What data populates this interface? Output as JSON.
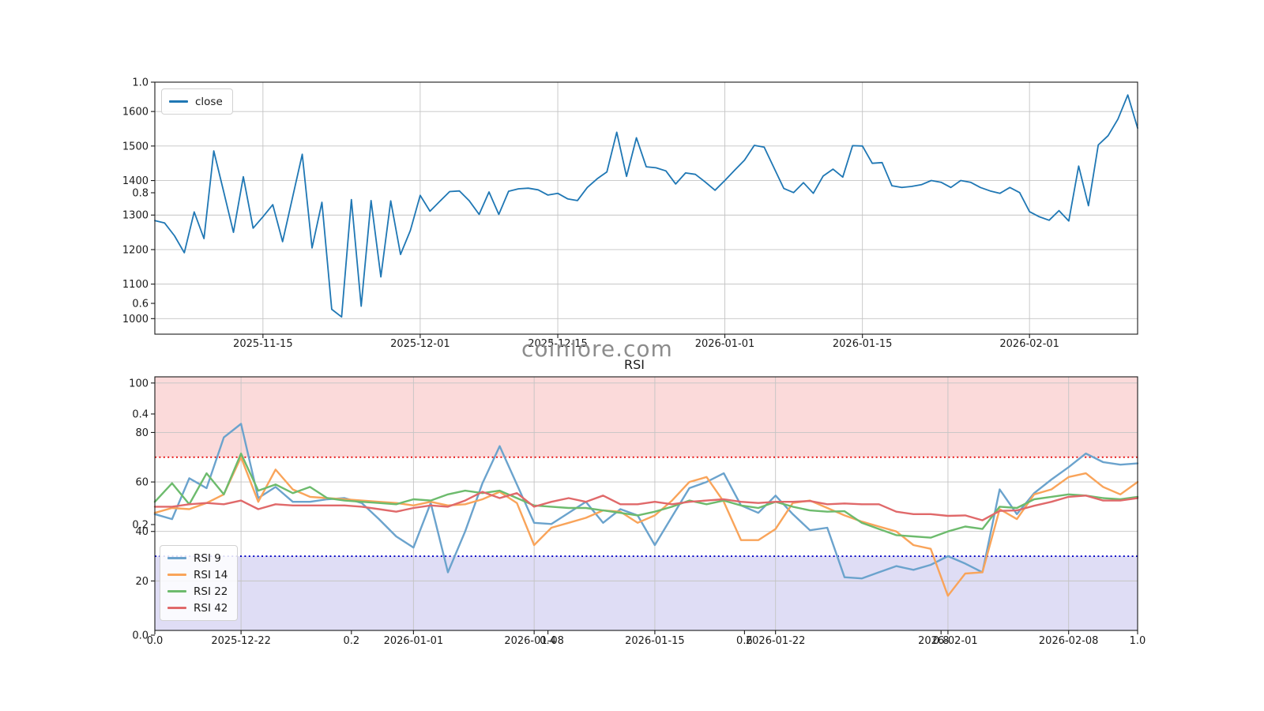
{
  "watermark": "coinlore.com",
  "colors": {
    "grid": "#c4c4c4",
    "spine": "#1a1a1a",
    "tick_text": "#1a1a1a",
    "watermark_gray": "#8c8c8c",
    "overbought_line": "#e50000",
    "oversold_line": "#0000c2",
    "overbought_band": "#fbdada",
    "oversold_band": "#dfddf5"
  },
  "overlay_axis": {
    "x_tick_labels": [
      "0.0",
      "0.2",
      "0.4",
      "0.6",
      "0.8",
      "1.0"
    ],
    "y_tick_labels": [
      "1.0",
      "0.8",
      "0.6",
      "0.4",
      "0.2",
      "0.0"
    ]
  },
  "chart_data": [
    {
      "type": "line",
      "name": "price",
      "x_start": "2025-11-04",
      "x_tick_labels": [
        "2025-11-15",
        "2025-12-01",
        "2025-12-15",
        "2026-01-01",
        "2026-01-15",
        "2026-02-01"
      ],
      "x_tick_indices": [
        11,
        27,
        41,
        58,
        72,
        89
      ],
      "y_ticks": [
        1000,
        1100,
        1200,
        1300,
        1400,
        1500,
        1600
      ],
      "ylim": [
        955,
        1685
      ],
      "grid": true,
      "legend_position": "upper-left",
      "series": [
        {
          "name": "close",
          "color": "#1f77b4",
          "width": 1.8,
          "values": [
            1284,
            1277,
            1240,
            1191,
            1309,
            1232,
            1486,
            1368,
            1250,
            1411,
            1262,
            1295,
            1330,
            1223,
            1350,
            1476,
            1205,
            1337,
            1027,
            1005,
            1345,
            1036,
            1342,
            1121,
            1341,
            1186,
            1255,
            1357,
            1311,
            1340,
            1368,
            1370,
            1341,
            1302,
            1367,
            1302,
            1369,
            1376,
            1378,
            1373,
            1358,
            1363,
            1347,
            1342,
            1380,
            1405,
            1425,
            1540,
            1412,
            1524,
            1440,
            1437,
            1428,
            1390,
            1422,
            1418,
            1396,
            1372,
            1400,
            1430,
            1459,
            1502,
            1497,
            1437,
            1377,
            1365,
            1394,
            1363,
            1413,
            1433,
            1410,
            1501,
            1500,
            1450,
            1452,
            1385,
            1380,
            1383,
            1388,
            1400,
            1395,
            1380,
            1400,
            1395,
            1380,
            1370,
            1363,
            1380,
            1365,
            1310,
            1295,
            1285,
            1313,
            1283,
            1442,
            1327,
            1503,
            1530,
            1578,
            1648,
            1552
          ]
        }
      ]
    },
    {
      "type": "line",
      "name": "rsi",
      "title": "RSI",
      "x_start": "2025-12-17",
      "x_tick_labels": [
        "2025-12-22",
        "2026-01-01",
        "2026-01-08",
        "2026-01-15",
        "2026-01-22",
        "2026-02-01",
        "2026-02-08"
      ],
      "x_tick_indices": [
        5,
        15,
        22,
        29,
        36,
        46,
        53
      ],
      "y_ticks": [
        20,
        40,
        60,
        80,
        100
      ],
      "ylim": [
        0,
        102.5
      ],
      "grid": true,
      "legend_position": "lower-left",
      "overbought": 70,
      "oversold": 30,
      "bands": [
        {
          "from": 70,
          "to": 102.5,
          "color_key": "overbought_band"
        },
        {
          "from": 0,
          "to": 30,
          "color_key": "oversold_band"
        }
      ],
      "hlines": [
        {
          "value": 70,
          "color_key": "overbought_line"
        },
        {
          "value": 30,
          "color_key": "oversold_line"
        }
      ],
      "series": [
        {
          "name": "RSI 9",
          "color": "#6ba3cd",
          "width": 2.4,
          "values": [
            47,
            45,
            61.5,
            57.5,
            78,
            83.5,
            53.5,
            58,
            52,
            52,
            53,
            53.5,
            51.5,
            45,
            38,
            33.5,
            51.5,
            23.5,
            40,
            59.5,
            74.5,
            59,
            43.5,
            43,
            47.5,
            52,
            43.5,
            49,
            46.5,
            34.5,
            46,
            57.5,
            60,
            63.5,
            50.5,
            47.5,
            54.5,
            47,
            40.5,
            41.5,
            21.5,
            21,
            23.5,
            26,
            24.5,
            26.5,
            30,
            27,
            23.5,
            57,
            47,
            55.5,
            61,
            66,
            71.5,
            68,
            67,
            67.5
          ]
        },
        {
          "name": "RSI 14",
          "color": "#f9a45a",
          "width": 2.4,
          "values": [
            47.5,
            49.5,
            49,
            51.5,
            55,
            70,
            52,
            65,
            57,
            54,
            53.5,
            53,
            52.5,
            52,
            51.5,
            50.5,
            52,
            50.5,
            51,
            53,
            56,
            51.5,
            34.5,
            41.5,
            43.5,
            45.5,
            48.5,
            48,
            43.5,
            46.5,
            52.5,
            60,
            62,
            52,
            36.5,
            36.5,
            41,
            51.5,
            52.5,
            49.5,
            46.5,
            44,
            42,
            40,
            34.5,
            33,
            14,
            23,
            23.5,
            49,
            45,
            55,
            57,
            62,
            63.5,
            58,
            55,
            60
          ]
        },
        {
          "name": "RSI 22",
          "color": "#6dbb6d",
          "width": 2.4,
          "values": [
            52,
            59.5,
            51,
            63.5,
            55,
            71.5,
            56.5,
            59,
            55.5,
            58,
            53.5,
            52.5,
            52,
            51.5,
            51,
            53,
            52.5,
            55,
            56.5,
            55.5,
            56.5,
            53.5,
            50.5,
            50,
            49.5,
            49.5,
            48.5,
            47.5,
            46.5,
            48,
            50,
            52.5,
            51,
            52.5,
            50.5,
            49.5,
            52,
            50,
            48.5,
            48,
            48.2,
            43.5,
            41,
            38.5,
            38,
            37.5,
            40,
            42,
            41,
            50,
            49.5,
            53,
            54,
            55,
            54.5,
            53.5,
            53,
            54
          ]
        },
        {
          "name": "RSI 42",
          "color": "#e0696a",
          "width": 2.4,
          "values": [
            50,
            50,
            51,
            51.5,
            51,
            52.5,
            49,
            51,
            50.5,
            50.5,
            50.5,
            50.5,
            50,
            49,
            48,
            49.5,
            50.5,
            50,
            52.5,
            56,
            53.5,
            55.5,
            50,
            52,
            53.5,
            52,
            54.5,
            51,
            51,
            52,
            51,
            52,
            52.5,
            53,
            52,
            51.5,
            52,
            52,
            52.3,
            51,
            51.3,
            51,
            51,
            48,
            47,
            47,
            46.3,
            46.5,
            44.5,
            48.3,
            48.5,
            50.4,
            52,
            54,
            54.5,
            52.5,
            52.5,
            53.5
          ]
        }
      ]
    }
  ]
}
